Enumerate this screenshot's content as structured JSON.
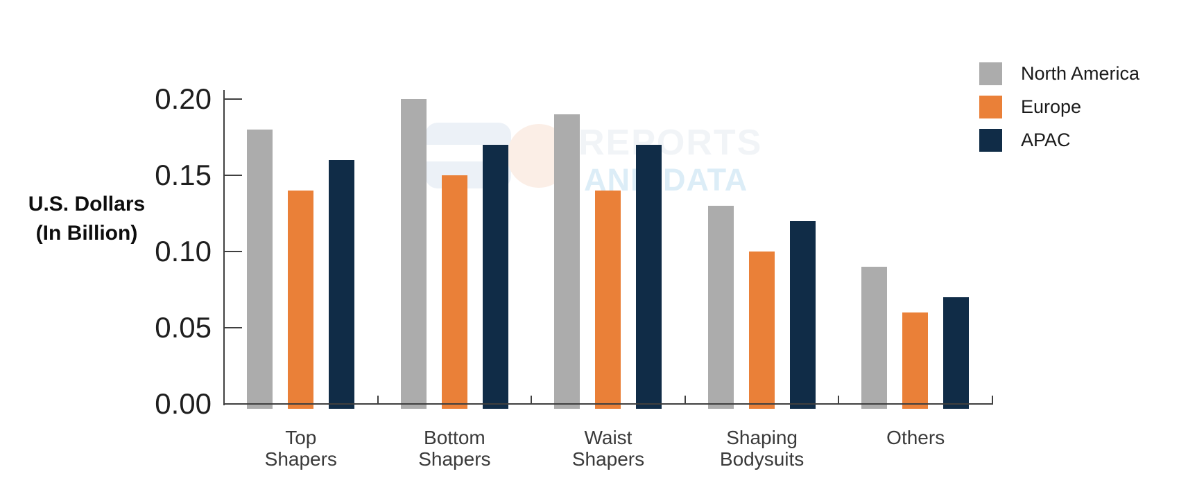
{
  "chart_data": {
    "type": "bar",
    "title": "",
    "categories": [
      "Top Shapers",
      "Bottom Shapers",
      "Waist Shapers",
      "Shaping Bodysuits",
      "Others"
    ],
    "category_label_lines": [
      [
        "Top",
        "Shapers"
      ],
      [
        "Bottom",
        "Shapers"
      ],
      [
        "Waist",
        "Shapers"
      ],
      [
        "Shaping",
        "Bodysuits"
      ],
      [
        "Others"
      ]
    ],
    "series": [
      {
        "name": "North America",
        "color": "#ACACAC",
        "values": [
          0.18,
          0.2,
          0.19,
          0.13,
          0.09
        ]
      },
      {
        "name": "Europe",
        "color": "#EA8038",
        "values": [
          0.14,
          0.15,
          0.14,
          0.1,
          0.06
        ]
      },
      {
        "name": "APAC",
        "color": "#102C47",
        "values": [
          0.16,
          0.17,
          0.17,
          0.12,
          0.07
        ]
      }
    ],
    "ylabel": "U.S. Dollars (In Billion)",
    "ylabel_line1": "U.S. Dollars",
    "ylabel_line2": "(In Billion)",
    "ytick_labels": [
      "0.00",
      "0.05",
      "0.10",
      "0.15",
      "0.20"
    ],
    "yticks": [
      0.0,
      0.05,
      0.1,
      0.15,
      0.2
    ],
    "ylim": [
      0,
      0.2
    ],
    "xlabel": "",
    "grid": false,
    "legend_position": "top-right"
  },
  "watermark": {
    "line1": "REPORTS",
    "line2": "AND DATA"
  },
  "colors": {
    "north_america": "#ACACAC",
    "europe": "#EA8038",
    "apac": "#102C47",
    "axis": "#3F3F3F",
    "tick_label_text": "#1E1E1E",
    "category_label_text": "#3A3A3A",
    "legend_text": "#1A1A1A",
    "background": "#FFFFFF",
    "watermark_gray_text": "#F1F4F7",
    "watermark_blue_text": "#DCEDF7"
  }
}
